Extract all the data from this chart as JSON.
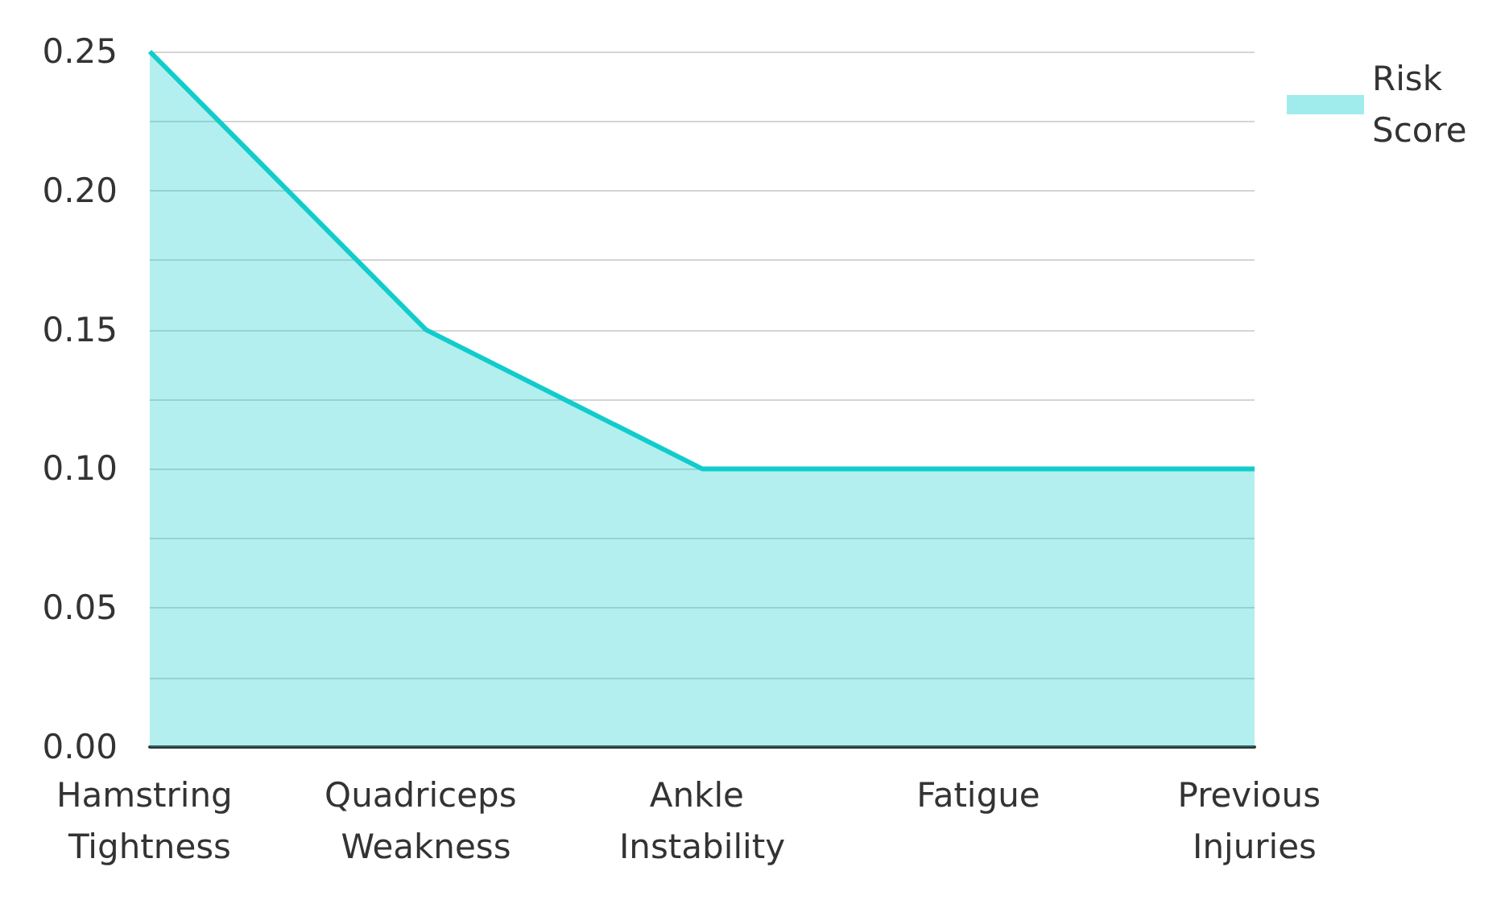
{
  "chart_data": {
    "type": "area",
    "categories": [
      "Hamstring Tightness",
      "Quadriceps Weakness",
      "Ankle Instability",
      "Fatigue",
      "Previous Injuries"
    ],
    "series": [
      {
        "name": "Risk Score",
        "color": "#12cccc",
        "values": [
          0.25,
          0.15,
          0.1,
          0.1,
          0.1
        ]
      }
    ],
    "ylim": [
      0,
      0.25
    ],
    "yticks": [
      {
        "value": 0,
        "label": "0.00"
      },
      {
        "value": 0.025,
        "label": null
      },
      {
        "value": 0.05,
        "label": "0.05"
      },
      {
        "value": 0.075,
        "label": null
      },
      {
        "value": 0.1,
        "label": "0.10"
      },
      {
        "value": 0.125,
        "label": null
      },
      {
        "value": 0.15,
        "label": "0.15"
      },
      {
        "value": 0.175,
        "label": null
      },
      {
        "value": 0.2,
        "label": "0.20"
      },
      {
        "value": 0.225,
        "label": null
      },
      {
        "value": 0.25,
        "label": "0.25"
      }
    ],
    "grid": "y",
    "legend": "top right",
    "marker": "none",
    "line_style": "solid"
  }
}
